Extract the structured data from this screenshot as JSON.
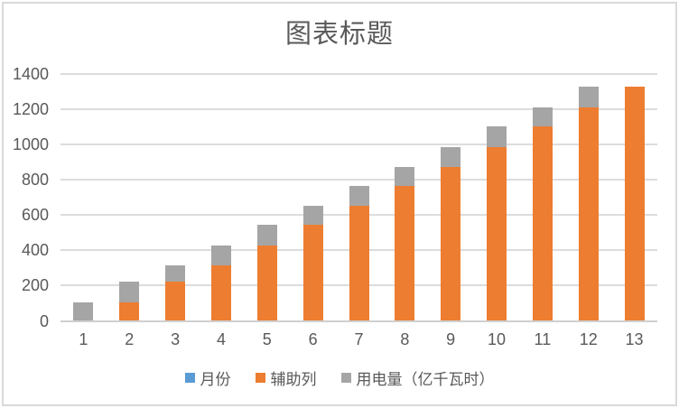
{
  "window": {
    "background": "#ffffff",
    "border_color": "#d9d9d9"
  },
  "chart": {
    "title": "图表标题",
    "title_color": "#595959",
    "gridline_color": "#dcdcdc",
    "axis_line_color": "#cfcfcf",
    "tick_label_color": "#595959"
  },
  "chart_data": {
    "type": "bar",
    "stacked": true,
    "waterfall": true,
    "title": "图表标题",
    "categories": [
      "1",
      "2",
      "3",
      "4",
      "5",
      "6",
      "7",
      "8",
      "9",
      "10",
      "11",
      "12",
      "13"
    ],
    "series": [
      {
        "name": "月份",
        "color": "#5B9BD5",
        "values": [
          0,
          0,
          0,
          0,
          0,
          0,
          0,
          0,
          0,
          0,
          0,
          0,
          0
        ]
      },
      {
        "name": "辅助列",
        "color": "#ED7D31",
        "values": [
          0,
          106,
          222,
          313,
          426,
          543,
          651,
          766,
          871,
          985,
          1105,
          1212,
          1330
        ]
      },
      {
        "name": "用电量（亿千瓦时）",
        "color": "#A5A5A5",
        "values": [
          106,
          116,
          91,
          113,
          117,
          108,
          115,
          105,
          114,
          120,
          107,
          118,
          0
        ]
      }
    ],
    "stack_totals": [
      106,
      222,
      313,
      426,
      543,
      651,
      766,
      871,
      985,
      1105,
      1212,
      1330,
      1330
    ],
    "xlabel": "",
    "ylabel": "",
    "ylim": [
      0,
      1400
    ],
    "y_ticks": [
      "0",
      "200",
      "400",
      "600",
      "800",
      "1000",
      "1200",
      "1400"
    ],
    "grid": true,
    "legend_position": "bottom",
    "legend": [
      {
        "label": "月份",
        "color": "#5B9BD5"
      },
      {
        "label": "辅助列",
        "color": "#ED7D31"
      },
      {
        "label": "用电量（亿千瓦时）",
        "color": "#A5A5A5"
      }
    ]
  }
}
